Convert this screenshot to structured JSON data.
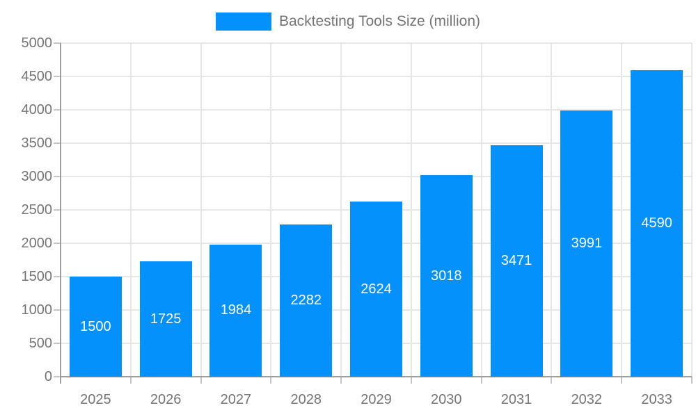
{
  "legend": {
    "label": "Backtesting Tools Size (million)"
  },
  "chart_data": {
    "type": "bar",
    "title": "Backtesting Tools Size (million)",
    "series_name": "Backtesting Tools Size (million)",
    "categories": [
      "2025",
      "2026",
      "2027",
      "2028",
      "2029",
      "2030",
      "2031",
      "2032",
      "2033"
    ],
    "values": [
      1500,
      1725,
      1984,
      2282,
      2624,
      3018,
      3471,
      3991,
      4590
    ],
    "value_labels": [
      "1500",
      "1725",
      "1984",
      "2282",
      "2624",
      "3018",
      "3471",
      "3991",
      "4590"
    ],
    "xlabel": "",
    "ylabel": "",
    "ylim": [
      0,
      5000
    ],
    "ytick_step": 500,
    "yticks": [
      0,
      500,
      1000,
      1500,
      2000,
      2500,
      3000,
      3500,
      4000,
      4500,
      5000
    ],
    "grid": true,
    "legend_position": "top",
    "colors": {
      "bar": "#0591fb",
      "value_label": "#ffffff",
      "axis_label": "#757575",
      "gridline": "#e6e6e6",
      "axis_line": "#9e9e9e",
      "tick": "#c4c4c4",
      "background": "#ffffff"
    }
  }
}
